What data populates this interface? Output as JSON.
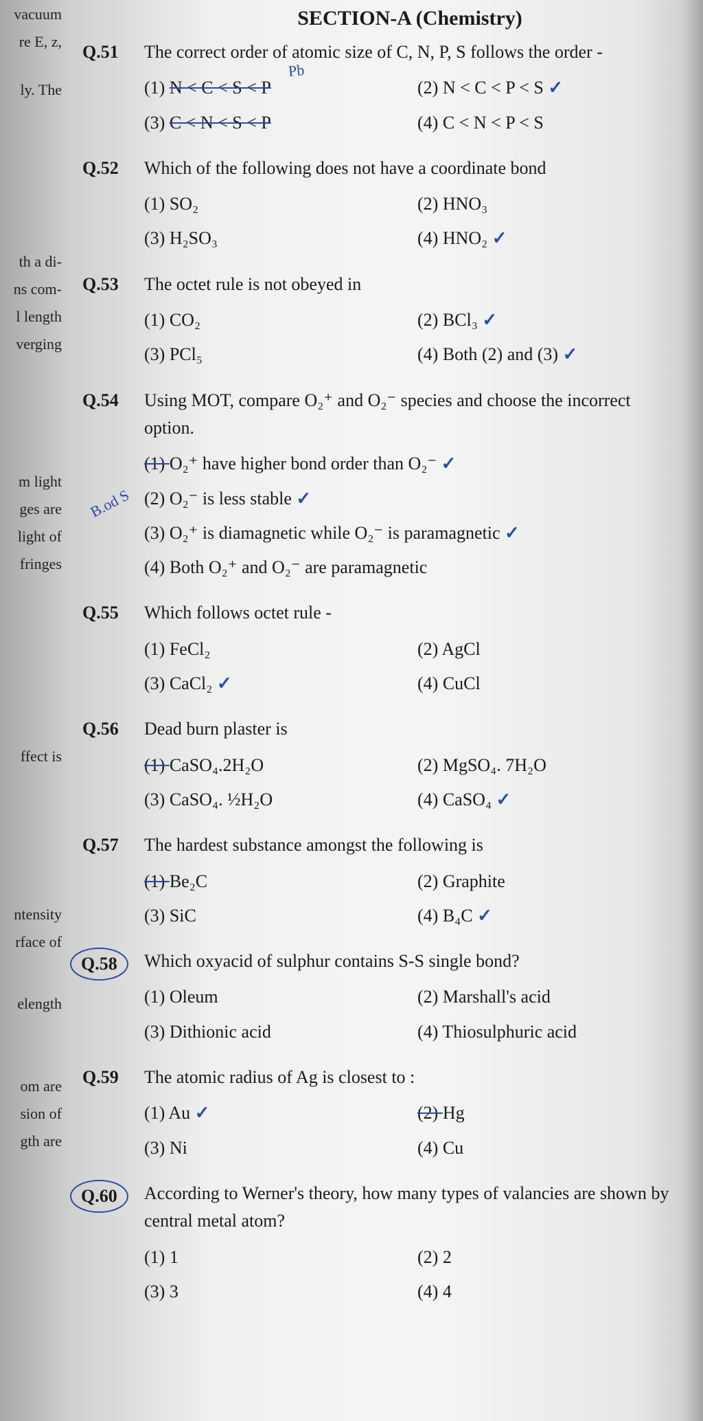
{
  "section_title": "SECTION-A (Chemistry)",
  "left_fragments": [
    "vacuum",
    "re E, z,",
    "ly. The",
    "",
    "th a di-",
    "ns com-",
    "l length",
    "verging",
    "",
    "m light",
    "ges are",
    "light of",
    "fringes",
    "",
    "",
    "ffect is",
    "",
    "ntensity",
    "rface of",
    "elength",
    "",
    "om are",
    "sion of",
    "gth are"
  ],
  "scribble_bods": "B.od S",
  "scribble_pb": "Pb",
  "questions": [
    {
      "num": "Q.51",
      "text": "The correct order of atomic size of C, N, P, S follows the order -",
      "opts": [
        {
          "n": "(1)",
          "t": "N < C < S < P",
          "strike": true
        },
        {
          "n": "(2)",
          "t": "N < C < P < S",
          "tick": true
        },
        {
          "n": "(3)",
          "t": "C < N < S < P",
          "strike": true
        },
        {
          "n": "(4)",
          "t": "C < N < P < S"
        }
      ]
    },
    {
      "num": "Q.52",
      "text": "Which of the following does not have a coordinate bond",
      "opts": [
        {
          "n": "(1)",
          "t": "SO₂"
        },
        {
          "n": "(2)",
          "t": "HNO₃"
        },
        {
          "n": "(3)",
          "t": "H₂SO₃"
        },
        {
          "n": "(4)",
          "t": "HNO₂",
          "tick": true
        }
      ]
    },
    {
      "num": "Q.53",
      "text": "The octet rule is not obeyed in",
      "opts": [
        {
          "n": "(1)",
          "t": "CO₂"
        },
        {
          "n": "(2)",
          "t": "BCl₃",
          "tick": true
        },
        {
          "n": "(3)",
          "t": "PCl₅"
        },
        {
          "n": "(4)",
          "t": "Both (2) and (3)",
          "tick": true
        }
      ]
    },
    {
      "num": "Q.54",
      "text": "Using MOT, compare O₂⁺ and O₂⁻ species and choose the incorrect option.",
      "single": true,
      "opts": [
        {
          "n": "(1)",
          "t": "O₂⁺ have higher bond order than O₂⁻",
          "tick": true,
          "strike_num": true
        },
        {
          "n": "(2)",
          "t": "O₂⁻ is less stable",
          "tick": true
        },
        {
          "n": "(3)",
          "t": "O₂⁺ is diamagnetic while O₂⁻ is paramagnetic",
          "tick": true
        },
        {
          "n": "(4)",
          "t": "Both O₂⁺ and O₂⁻ are paramagnetic"
        }
      ]
    },
    {
      "num": "Q.55",
      "text": "Which follows octet rule -",
      "opts": [
        {
          "n": "(1)",
          "t": "FeCl₂"
        },
        {
          "n": "(2)",
          "t": "AgCl"
        },
        {
          "n": "(3)",
          "t": "CaCl₂",
          "tick": true
        },
        {
          "n": "(4)",
          "t": "CuCl"
        }
      ]
    },
    {
      "num": "Q.56",
      "text": "Dead burn plaster is",
      "opts": [
        {
          "n": "(1)",
          "t": "CaSO₄.2H₂O",
          "strike_num": true
        },
        {
          "n": "(2)",
          "t": "MgSO₄. 7H₂O"
        },
        {
          "n": "(3)",
          "t": "CaSO₄. ½H₂O"
        },
        {
          "n": "(4)",
          "t": "CaSO₄",
          "tick": true
        }
      ]
    },
    {
      "num": "Q.57",
      "text": "The hardest substance amongst the following is",
      "opts": [
        {
          "n": "(1)",
          "t": "Be₂C",
          "strike_num": true
        },
        {
          "n": "(2)",
          "t": "Graphite"
        },
        {
          "n": "(3)",
          "t": "SiC"
        },
        {
          "n": "(4)",
          "t": "B₄C",
          "tick": true
        }
      ]
    },
    {
      "num": "Q.58",
      "circled": true,
      "text": "Which oxyacid of sulphur contains S-S single bond?",
      "opts": [
        {
          "n": "(1)",
          "t": "Oleum"
        },
        {
          "n": "(2)",
          "t": "Marshall's acid"
        },
        {
          "n": "(3)",
          "t": "Dithionic acid"
        },
        {
          "n": "(4)",
          "t": "Thiosulphuric acid"
        }
      ]
    },
    {
      "num": "Q.59",
      "text": "The atomic radius of Ag is closest to :",
      "opts": [
        {
          "n": "(1)",
          "t": "Au",
          "tick": true
        },
        {
          "n": "(2)",
          "t": "Hg",
          "strike_num": true
        },
        {
          "n": "(3)",
          "t": "Ni"
        },
        {
          "n": "(4)",
          "t": "Cu"
        }
      ]
    },
    {
      "num": "Q.60",
      "circled": true,
      "text": "According to Werner's theory, how many types of valancies are shown by central metal atom?",
      "opts": [
        {
          "n": "(1)",
          "t": "1"
        },
        {
          "n": "(2)",
          "t": "2"
        },
        {
          "n": "(3)",
          "t": "3"
        },
        {
          "n": "(4)",
          "t": "4"
        }
      ]
    }
  ]
}
